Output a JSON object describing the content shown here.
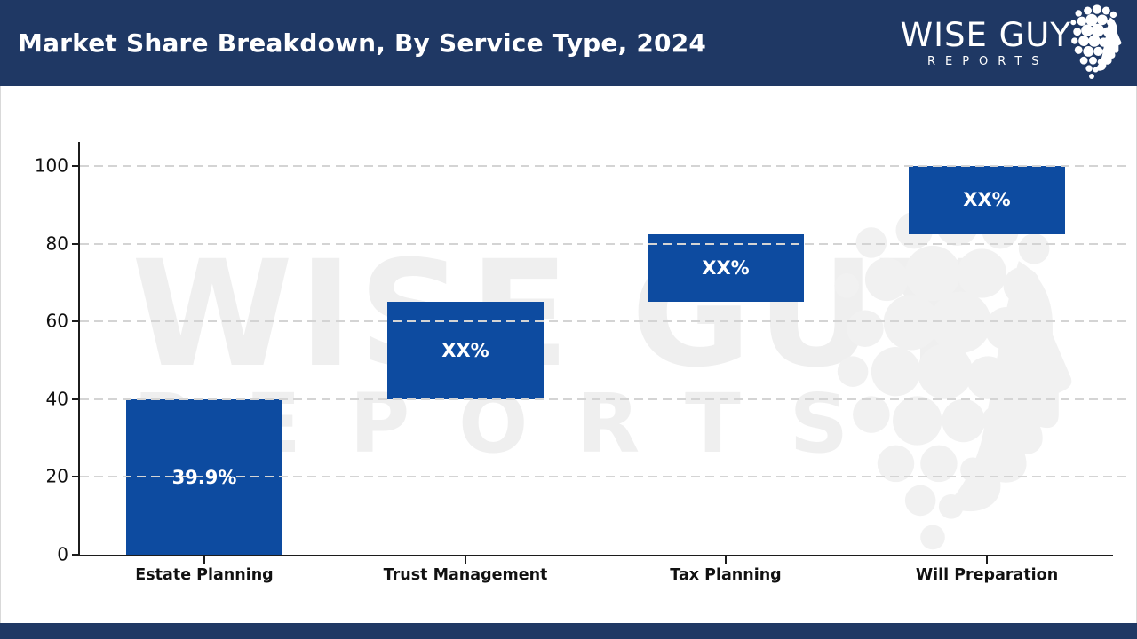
{
  "header": {
    "logo": {
      "wordmark": "WISE GUY",
      "subtext": "REPORTS",
      "icon": "dotted-head-profile-icon"
    }
  },
  "watermark": {
    "line1": "WISE GUY",
    "line2": "REPORTS",
    "icon": "dotted-head-profile-icon"
  },
  "colors": {
    "header_bar": "#1f3864",
    "footer_bar": "#1f3864",
    "bar_fill": "#0d4ba0",
    "gridline": "#d4d4d4",
    "axis": "#1c1c1c"
  },
  "chart_data": {
    "type": "bar",
    "variant": "stacked-waterfall",
    "title": "Market Share Breakdown, By Service Type, 2024",
    "categories": [
      "Estate Planning",
      "Trust Management",
      "Tax Planning",
      "Will Preparation"
    ],
    "bars": [
      {
        "category": "Estate Planning",
        "start": 0,
        "end": 39.9,
        "label": "39.9%"
      },
      {
        "category": "Trust Management",
        "start": 40,
        "end": 65,
        "label": "XX%"
      },
      {
        "category": "Tax Planning",
        "start": 65,
        "end": 82.5,
        "label": "XX%"
      },
      {
        "category": "Will Preparation",
        "start": 82.5,
        "end": 100,
        "label": "XX%"
      }
    ],
    "ylim": [
      0,
      100
    ],
    "yticks": [
      0,
      20,
      40,
      60,
      80,
      100
    ],
    "xlabel": "",
    "ylabel": "",
    "grid": "dashed-horizontal-over-bars",
    "legend": null,
    "bar_color": "#0d4ba0"
  }
}
